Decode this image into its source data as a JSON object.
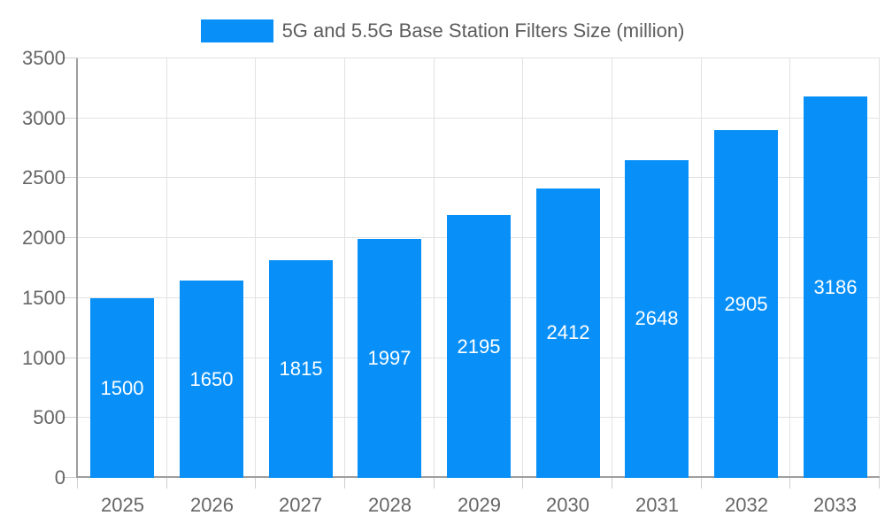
{
  "chart_data": {
    "type": "bar",
    "title": "5G and 5.5G Base Station Filters Size (million)",
    "categories": [
      "2025",
      "2026",
      "2027",
      "2028",
      "2029",
      "2030",
      "2031",
      "2032",
      "2033"
    ],
    "values": [
      1500,
      1650,
      1815,
      1997,
      2195,
      2412,
      2648,
      2905,
      3186
    ],
    "xlabel": "",
    "ylabel": "",
    "ylim": [
      0,
      3500
    ],
    "yticks": [
      0,
      500,
      1000,
      1500,
      2000,
      2500,
      3000,
      3500
    ],
    "legend_position": "top-center",
    "grid": true,
    "bar_labels_inside": true,
    "colors": {
      "bar": "#0990f8",
      "bar_label_text": "#ffffff",
      "gridline": "#e2e2e2",
      "axis_line": "#9e9e9e",
      "tick": "#cfcfcf",
      "axis_text": "#666666",
      "title_text": "#5c5c5c"
    }
  }
}
